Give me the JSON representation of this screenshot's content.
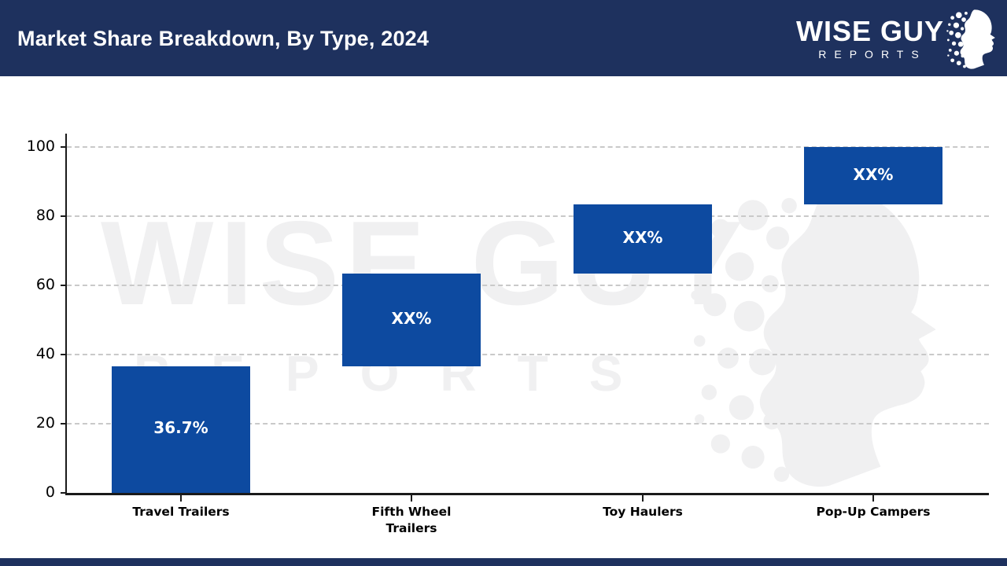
{
  "header": {
    "title": "Market Share Breakdown, By Type, 2024",
    "logo": {
      "name": "WISE GUY",
      "sub": "REPORTS"
    }
  },
  "watermark": {
    "name": "WISE GUY",
    "sub": "REPORTS"
  },
  "footer": {},
  "chart_data": {
    "type": "bar",
    "variant": "waterfall",
    "title": "Market Share Breakdown, By Type, 2024",
    "categories": [
      "Travel Trailers",
      "Fifth Wheel Trailers",
      "Toy Haulers",
      "Pop-Up Campers"
    ],
    "category_lines": [
      [
        "Travel Trailers"
      ],
      [
        "Fifth Wheel",
        "Trailers"
      ],
      [
        "Toy Haulers"
      ],
      [
        "Pop-Up Campers"
      ]
    ],
    "segments": [
      {
        "category": "Travel Trailers",
        "start": 0,
        "end": 36.7,
        "label": "36.7%"
      },
      {
        "category": "Fifth Wheel Trailers",
        "start": 36.7,
        "end": 63.4,
        "label": "XX%"
      },
      {
        "category": "Toy Haulers",
        "start": 63.4,
        "end": 83.4,
        "label": "XX%"
      },
      {
        "category": "Pop-Up Campers",
        "start": 83.4,
        "end": 100,
        "label": "XX%"
      }
    ],
    "xlabel": "",
    "ylabel": "",
    "ylim": [
      0,
      100
    ],
    "yticks": [
      0,
      20,
      40,
      60,
      80,
      100
    ],
    "grid": "horizontal-dashed",
    "legend": "none",
    "colors": {
      "bar": "#0d4aa0",
      "bar_label": "#ffffff",
      "gridline": "#c9c9c9",
      "axis": "#1a1a1a",
      "header_bg": "#1e315e",
      "footer_bg": "#1e315e",
      "watermark": "#f0f0f1",
      "title_text": "#ffffff"
    }
  }
}
